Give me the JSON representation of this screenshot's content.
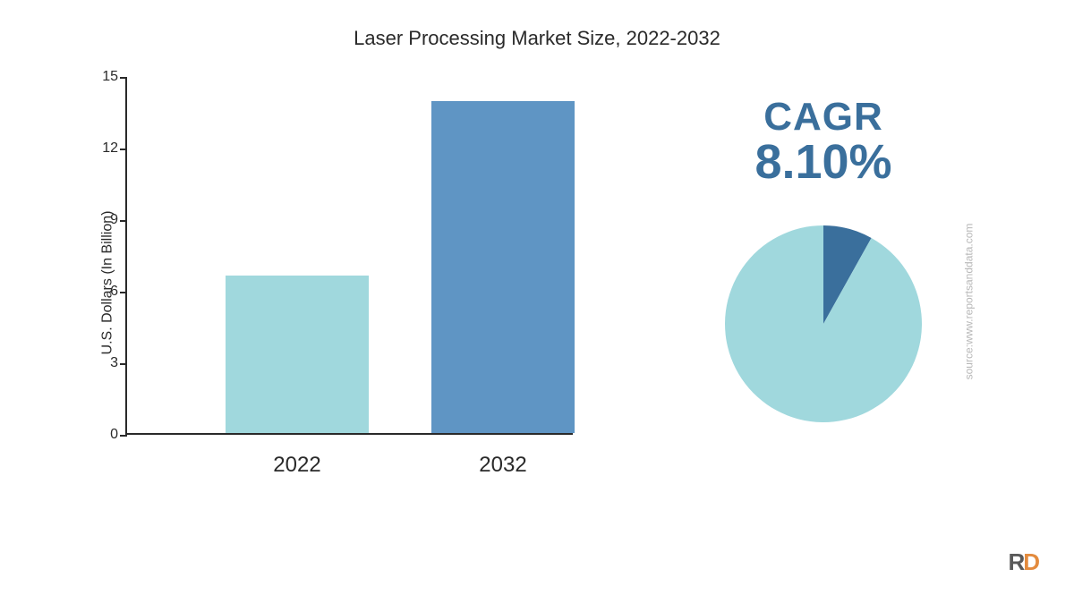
{
  "title": "Laser Processing Market Size, 2022-2032",
  "barChart": {
    "type": "bar",
    "yAxisLabel": "U.S. Dollars (In Billion)",
    "ylim": [
      0,
      15
    ],
    "yticks": [
      0,
      3,
      6,
      9,
      12,
      15
    ],
    "categories": [
      "2022",
      "2032"
    ],
    "values": [
      6.6,
      13.9
    ],
    "barColors": [
      "#a0d8dd",
      "#5f95c4"
    ],
    "barWidthPx": 160,
    "plotWidthPx": 500,
    "plotHeightPx": 400,
    "barPositionsPx": [
      110,
      340
    ],
    "axisColor": "#2a2a2a",
    "xTickFontSize": 24,
    "yTickFontSize": 16,
    "yLabelFontSize": 16
  },
  "cagr": {
    "label": "CAGR",
    "value": "8.10%",
    "color": "#3a6f9c",
    "labelFontSize": 44,
    "valueFontSize": 54
  },
  "pieChart": {
    "type": "pie",
    "radius": 110,
    "slices": [
      {
        "value": 8.1,
        "color": "#3a6f9c"
      },
      {
        "value": 91.9,
        "color": "#a0d8dd"
      }
    ],
    "startAngleDeg": -90
  },
  "source": "source:www.reportsanddata.com",
  "logo": {
    "r": "R",
    "d": "D"
  },
  "background": "#ffffff"
}
